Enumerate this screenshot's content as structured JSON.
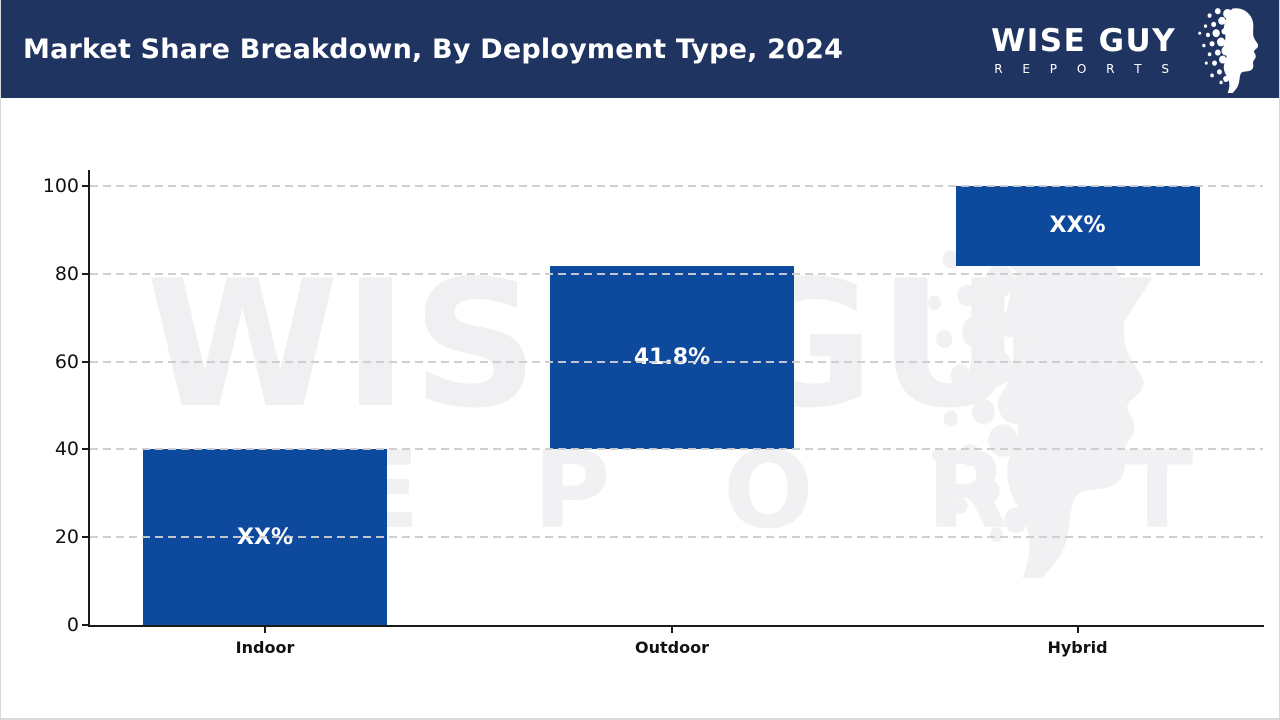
{
  "header": {
    "title": "Market Share Breakdown, By Deployment Type, 2024",
    "logo": {
      "line1": "WISE GUY",
      "line2": "R E P O R T S"
    }
  },
  "watermark": {
    "line1": "WISE GUY",
    "line2": "R E P O R T S"
  },
  "chart_data": {
    "type": "bar",
    "subtype": "waterfall",
    "title": "Market Share Breakdown, By Deployment Type, 2024",
    "categories": [
      "Indoor",
      "Outdoor",
      "Hybrid"
    ],
    "bars": [
      {
        "category": "Indoor",
        "start": 0,
        "end": 40,
        "label": "XX%"
      },
      {
        "category": "Outdoor",
        "start": 40,
        "end": 81.8,
        "label": "41.8%"
      },
      {
        "category": "Hybrid",
        "start": 81.8,
        "end": 100,
        "label": "XX%"
      }
    ],
    "xlabel": "",
    "ylabel": "",
    "ylim": [
      0,
      100
    ],
    "yticks": [
      0,
      20,
      40,
      60,
      80,
      100
    ],
    "grid": "horizontal-dashed",
    "legend": "none",
    "bar_color": "#0d4a9e",
    "value_label_color": "#ffffff"
  },
  "colors": {
    "header_bg": "#203462",
    "bar": "#0d4a9e",
    "grid": "#cdcdd0",
    "axis": "#1a1a1a",
    "watermark": "#f0f0f2"
  }
}
